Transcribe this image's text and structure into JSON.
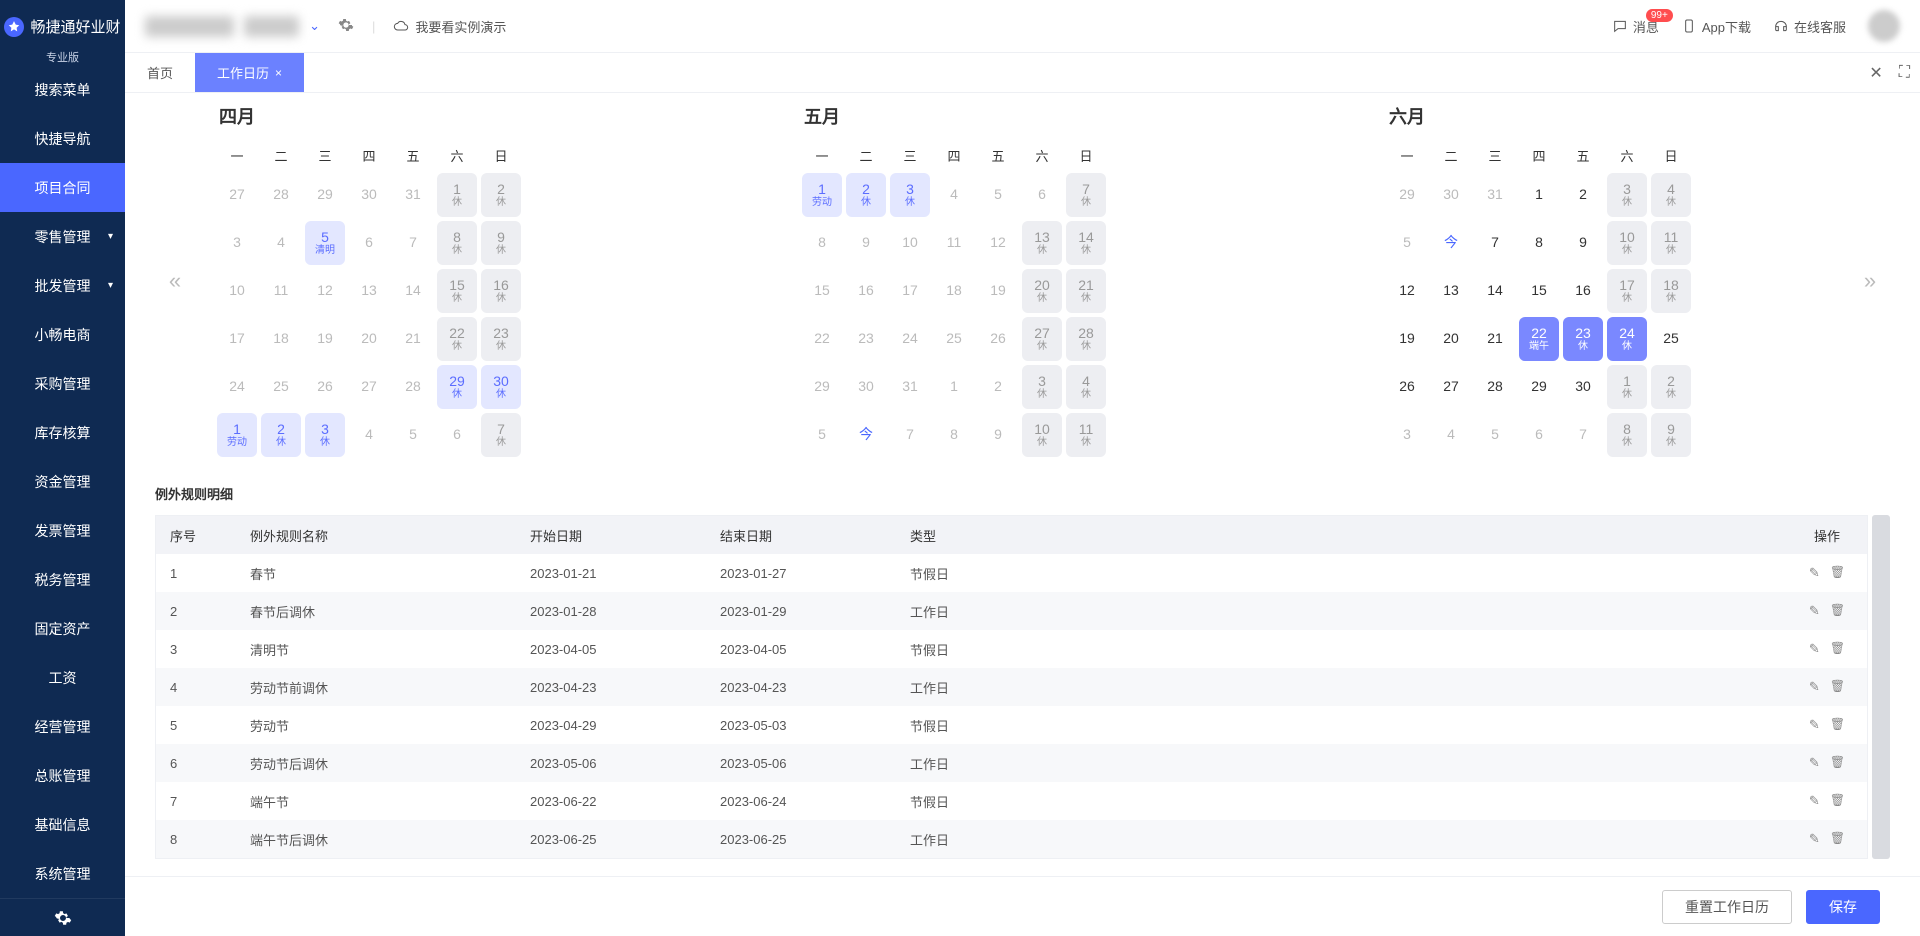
{
  "brand": {
    "name": "畅捷通好业财",
    "sub": "专业版"
  },
  "sidebar": {
    "items": [
      {
        "label": "搜索菜单",
        "active": false,
        "chev": false
      },
      {
        "label": "快捷导航",
        "active": false,
        "chev": false
      },
      {
        "label": "项目合同",
        "active": true,
        "chev": false
      },
      {
        "label": "零售管理",
        "active": false,
        "chev": true
      },
      {
        "label": "批发管理",
        "active": false,
        "chev": true
      },
      {
        "label": "小畅电商",
        "active": false,
        "chev": false
      },
      {
        "label": "采购管理",
        "active": false,
        "chev": false
      },
      {
        "label": "库存核算",
        "active": false,
        "chev": false
      },
      {
        "label": "资金管理",
        "active": false,
        "chev": false
      },
      {
        "label": "发票管理",
        "active": false,
        "chev": false
      },
      {
        "label": "税务管理",
        "active": false,
        "chev": false
      },
      {
        "label": "固定资产",
        "active": false,
        "chev": false
      },
      {
        "label": "工资",
        "active": false,
        "chev": false
      },
      {
        "label": "经营管理",
        "active": false,
        "chev": false
      },
      {
        "label": "总账管理",
        "active": false,
        "chev": false
      },
      {
        "label": "基础信息",
        "active": false,
        "chev": false
      },
      {
        "label": "系统管理",
        "active": false,
        "chev": false
      }
    ]
  },
  "header": {
    "demo": "我要看实例演示",
    "message": "消息",
    "badge": "99+",
    "app": "App下载",
    "service": "在线客服"
  },
  "tabs": {
    "items": [
      {
        "label": "首页",
        "active": false,
        "closable": false
      },
      {
        "label": "工作日历",
        "active": true,
        "closable": true
      }
    ]
  },
  "calendar": {
    "dow": [
      "一",
      "二",
      "三",
      "四",
      "五",
      "六",
      "日"
    ],
    "today_label": "今",
    "rest_label": "休",
    "months": [
      {
        "title": "四月",
        "cells": [
          {
            "n": "27",
            "t": "dim"
          },
          {
            "n": "28",
            "t": "dim"
          },
          {
            "n": "29",
            "t": "dim"
          },
          {
            "n": "30",
            "t": "dim"
          },
          {
            "n": "31",
            "t": "dim"
          },
          {
            "n": "1",
            "t": "rest",
            "sub": "休"
          },
          {
            "n": "2",
            "t": "rest",
            "sub": "休"
          },
          {
            "n": "3",
            "t": "dim"
          },
          {
            "n": "4",
            "t": "dim"
          },
          {
            "n": "5",
            "t": "holiday",
            "sub": "清明"
          },
          {
            "n": "6",
            "t": "dim"
          },
          {
            "n": "7",
            "t": "dim"
          },
          {
            "n": "8",
            "t": "rest",
            "sub": "休"
          },
          {
            "n": "9",
            "t": "rest",
            "sub": "休"
          },
          {
            "n": "10",
            "t": "dim"
          },
          {
            "n": "11",
            "t": "dim"
          },
          {
            "n": "12",
            "t": "dim"
          },
          {
            "n": "13",
            "t": "dim"
          },
          {
            "n": "14",
            "t": "dim"
          },
          {
            "n": "15",
            "t": "rest",
            "sub": "休"
          },
          {
            "n": "16",
            "t": "rest",
            "sub": "休"
          },
          {
            "n": "17",
            "t": "dim"
          },
          {
            "n": "18",
            "t": "dim"
          },
          {
            "n": "19",
            "t": "dim"
          },
          {
            "n": "20",
            "t": "dim"
          },
          {
            "n": "21",
            "t": "dim"
          },
          {
            "n": "22",
            "t": "rest",
            "sub": "休"
          },
          {
            "n": "23",
            "t": "rest",
            "sub": "休"
          },
          {
            "n": "24",
            "t": "dim"
          },
          {
            "n": "25",
            "t": "dim"
          },
          {
            "n": "26",
            "t": "dim"
          },
          {
            "n": "27",
            "t": "dim"
          },
          {
            "n": "28",
            "t": "dim"
          },
          {
            "n": "29",
            "t": "holiday",
            "sub": "休"
          },
          {
            "n": "30",
            "t": "holiday",
            "sub": "休"
          },
          {
            "n": "1",
            "t": "holiday",
            "sub": "劳动"
          },
          {
            "n": "2",
            "t": "holiday",
            "sub": "休"
          },
          {
            "n": "3",
            "t": "holiday",
            "sub": "休"
          },
          {
            "n": "4",
            "t": "dim"
          },
          {
            "n": "5",
            "t": "dim"
          },
          {
            "n": "6",
            "t": "dim"
          },
          {
            "n": "7",
            "t": "rest",
            "sub": "休"
          }
        ]
      },
      {
        "title": "五月",
        "cells": [
          {
            "n": "1",
            "t": "holiday",
            "sub": "劳动"
          },
          {
            "n": "2",
            "t": "holiday",
            "sub": "休"
          },
          {
            "n": "3",
            "t": "holiday",
            "sub": "休"
          },
          {
            "n": "4",
            "t": "dim"
          },
          {
            "n": "5",
            "t": "dim"
          },
          {
            "n": "6",
            "t": "dim"
          },
          {
            "n": "7",
            "t": "rest",
            "sub": "休"
          },
          {
            "n": "8",
            "t": "dim"
          },
          {
            "n": "9",
            "t": "dim"
          },
          {
            "n": "10",
            "t": "dim"
          },
          {
            "n": "11",
            "t": "dim"
          },
          {
            "n": "12",
            "t": "dim"
          },
          {
            "n": "13",
            "t": "rest",
            "sub": "休"
          },
          {
            "n": "14",
            "t": "rest",
            "sub": "休"
          },
          {
            "n": "15",
            "t": "dim"
          },
          {
            "n": "16",
            "t": "dim"
          },
          {
            "n": "17",
            "t": "dim"
          },
          {
            "n": "18",
            "t": "dim"
          },
          {
            "n": "19",
            "t": "dim"
          },
          {
            "n": "20",
            "t": "rest",
            "sub": "休"
          },
          {
            "n": "21",
            "t": "rest",
            "sub": "休"
          },
          {
            "n": "22",
            "t": "dim"
          },
          {
            "n": "23",
            "t": "dim"
          },
          {
            "n": "24",
            "t": "dim"
          },
          {
            "n": "25",
            "t": "dim"
          },
          {
            "n": "26",
            "t": "dim"
          },
          {
            "n": "27",
            "t": "rest",
            "sub": "休"
          },
          {
            "n": "28",
            "t": "rest",
            "sub": "休"
          },
          {
            "n": "29",
            "t": "dim"
          },
          {
            "n": "30",
            "t": "dim"
          },
          {
            "n": "31",
            "t": "dim"
          },
          {
            "n": "1",
            "t": "dim"
          },
          {
            "n": "2",
            "t": "dim"
          },
          {
            "n": "3",
            "t": "rest",
            "sub": "休"
          },
          {
            "n": "4",
            "t": "rest",
            "sub": "休"
          },
          {
            "n": "5",
            "t": "dim"
          },
          {
            "n": "今",
            "t": "today"
          },
          {
            "n": "7",
            "t": "dim"
          },
          {
            "n": "8",
            "t": "dim"
          },
          {
            "n": "9",
            "t": "dim"
          },
          {
            "n": "10",
            "t": "rest",
            "sub": "休"
          },
          {
            "n": "11",
            "t": "rest",
            "sub": "休"
          }
        ]
      },
      {
        "title": "六月",
        "cells": [
          {
            "n": "29",
            "t": "dim"
          },
          {
            "n": "30",
            "t": "dim"
          },
          {
            "n": "31",
            "t": "dim"
          },
          {
            "n": "1",
            "t": "normal"
          },
          {
            "n": "2",
            "t": "normal"
          },
          {
            "n": "3",
            "t": "rest",
            "sub": "休"
          },
          {
            "n": "4",
            "t": "rest",
            "sub": "休"
          },
          {
            "n": "5",
            "t": "dim"
          },
          {
            "n": "今",
            "t": "today"
          },
          {
            "n": "7",
            "t": "normal"
          },
          {
            "n": "8",
            "t": "normal"
          },
          {
            "n": "9",
            "t": "normal"
          },
          {
            "n": "10",
            "t": "rest",
            "sub": "休"
          },
          {
            "n": "11",
            "t": "rest",
            "sub": "休"
          },
          {
            "n": "12",
            "t": "normal"
          },
          {
            "n": "13",
            "t": "normal"
          },
          {
            "n": "14",
            "t": "normal"
          },
          {
            "n": "15",
            "t": "normal"
          },
          {
            "n": "16",
            "t": "normal"
          },
          {
            "n": "17",
            "t": "rest",
            "sub": "休"
          },
          {
            "n": "18",
            "t": "rest",
            "sub": "休"
          },
          {
            "n": "19",
            "t": "normal"
          },
          {
            "n": "20",
            "t": "normal"
          },
          {
            "n": "21",
            "t": "normal"
          },
          {
            "n": "22",
            "t": "holiday-strong",
            "sub": "端午"
          },
          {
            "n": "23",
            "t": "holiday-strong",
            "sub": "休"
          },
          {
            "n": "24",
            "t": "holiday-strong",
            "sub": "休"
          },
          {
            "n": "25",
            "t": "normal"
          },
          {
            "n": "26",
            "t": "normal"
          },
          {
            "n": "27",
            "t": "normal"
          },
          {
            "n": "28",
            "t": "normal"
          },
          {
            "n": "29",
            "t": "normal"
          },
          {
            "n": "30",
            "t": "normal"
          },
          {
            "n": "1",
            "t": "rest",
            "sub": "休"
          },
          {
            "n": "2",
            "t": "rest",
            "sub": "休"
          },
          {
            "n": "3",
            "t": "dim"
          },
          {
            "n": "4",
            "t": "dim"
          },
          {
            "n": "5",
            "t": "dim"
          },
          {
            "n": "6",
            "t": "dim"
          },
          {
            "n": "7",
            "t": "dim"
          },
          {
            "n": "8",
            "t": "rest",
            "sub": "休"
          },
          {
            "n": "9",
            "t": "rest",
            "sub": "休"
          }
        ]
      }
    ]
  },
  "rules": {
    "title": "例外规则明细",
    "columns": [
      "序号",
      "例外规则名称",
      "开始日期",
      "结束日期",
      "类型",
      "操作"
    ],
    "rows": [
      [
        "1",
        "春节",
        "2023-01-21",
        "2023-01-27",
        "节假日"
      ],
      [
        "2",
        "春节后调休",
        "2023-01-28",
        "2023-01-29",
        "工作日"
      ],
      [
        "3",
        "清明节",
        "2023-04-05",
        "2023-04-05",
        "节假日"
      ],
      [
        "4",
        "劳动节前调休",
        "2023-04-23",
        "2023-04-23",
        "工作日"
      ],
      [
        "5",
        "劳动节",
        "2023-04-29",
        "2023-05-03",
        "节假日"
      ],
      [
        "6",
        "劳动节后调休",
        "2023-05-06",
        "2023-05-06",
        "工作日"
      ],
      [
        "7",
        "端午节",
        "2023-06-22",
        "2023-06-24",
        "节假日"
      ],
      [
        "8",
        "端午节后调休",
        "2023-06-25",
        "2023-06-25",
        "工作日"
      ]
    ]
  },
  "footer": {
    "reset": "重置工作日历",
    "save": "保存"
  },
  "colors": {
    "sidebar_bg": "#0f2a52",
    "primary": "#4a67ff",
    "tab_active": "#6b81ff",
    "rest_bg": "#edeef2",
    "holiday_bg": "#e3e7ff",
    "holiday_strong_bg": "#7a88ff",
    "badge": "#ff4d4f"
  }
}
